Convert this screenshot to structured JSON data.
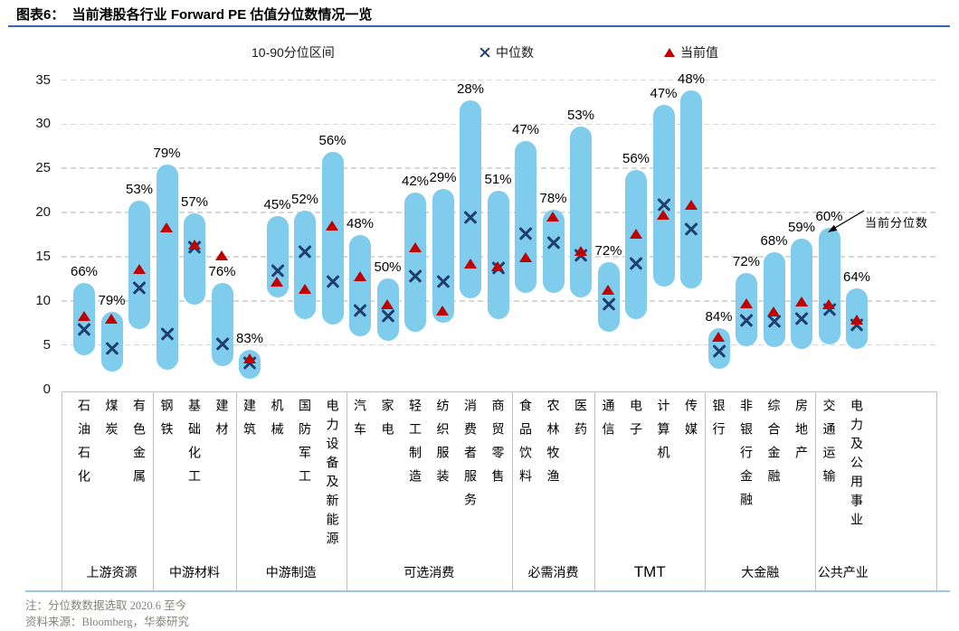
{
  "figure": {
    "title": "图表6：  当前港股各行业 Forward PE 估值分位数情况一览"
  },
  "legend": {
    "range_label": "10-90分位区间",
    "median_label": "中位数",
    "current_label": "当前值"
  },
  "annotation": {
    "text": "当前分位数"
  },
  "notes": {
    "note": "注：分位数数据选取 2020.6 至今",
    "source": "资料来源：Bloomberg，华泰研究"
  },
  "colors": {
    "bar": "#7fccec",
    "median_marker": "#1f3d6e",
    "current_marker": "#c00000",
    "title_rule": "#3a66a8",
    "bottom_rule": "#9dc3e6",
    "grid": "#d8d8d8",
    "table_border": "#c0c0c0",
    "note_text": "#83847c"
  },
  "chart_data": {
    "type": "bar",
    "subtype": "floating-range-bar-with-markers",
    "title": "当前港股各行业 Forward PE 估值分位数情况一览",
    "xlabel": "",
    "ylabel": "",
    "ylim": [
      0,
      35
    ],
    "yticks": [
      0,
      5,
      10,
      15,
      20,
      25,
      30,
      35
    ],
    "grid": true,
    "legend_position": "top",
    "series": [
      {
        "name": "10-90分位区间",
        "type": "range-bar"
      },
      {
        "name": "中位数",
        "type": "marker-x"
      },
      {
        "name": "当前值",
        "type": "marker-triangle"
      }
    ],
    "groups": [
      {
        "name": "上游资源",
        "industries": [
          "石油石化",
          "煤炭",
          "有色金属"
        ]
      },
      {
        "name": "中游材料",
        "industries": [
          "钢铁",
          "基础化工",
          "建材"
        ]
      },
      {
        "name": "中游制造",
        "industries": [
          "建筑",
          "机械",
          "国防军工",
          "电力设备及新能源"
        ]
      },
      {
        "name": "可选消费",
        "industries": [
          "汽车",
          "家电",
          "轻工制造",
          "纺织服装",
          "消费者服务",
          "商贸零售"
        ]
      },
      {
        "name": "必需消费",
        "industries": [
          "食品饮料",
          "农林牧渔",
          "医药"
        ]
      },
      {
        "name": "TMT",
        "industries": [
          "通信",
          "电子",
          "计算机",
          "传媒"
        ]
      },
      {
        "name": "大金融",
        "industries": [
          "银行",
          "非银行金融",
          "综合金融",
          "房地产"
        ]
      },
      {
        "name": "公共产业",
        "industries": [
          "交通运输",
          "电力及公用事业"
        ]
      }
    ],
    "bars": [
      {
        "industry": "石油石化",
        "group": "上游资源",
        "p10": 3.8,
        "p90": 12.0,
        "median": 6.8,
        "current": 8.3,
        "percentile": "66%"
      },
      {
        "industry": "煤炭",
        "group": "上游资源",
        "p10": 2.0,
        "p90": 8.8,
        "median": 4.6,
        "current": 8.0,
        "percentile": "79%"
      },
      {
        "industry": "有色金属",
        "group": "上游资源",
        "p10": 6.8,
        "p90": 21.3,
        "median": 11.5,
        "current": 13.6,
        "percentile": "53%"
      },
      {
        "industry": "钢铁",
        "group": "中游材料",
        "p10": 2.2,
        "p90": 25.4,
        "median": 6.3,
        "current": 18.3,
        "percentile": "79%"
      },
      {
        "industry": "基础化工",
        "group": "中游材料",
        "p10": 9.6,
        "p90": 19.9,
        "median": 16.1,
        "current": 16.4,
        "percentile": "57%"
      },
      {
        "industry": "建材",
        "group": "中游材料",
        "p10": 2.6,
        "p90": 12.0,
        "median": 5.1,
        "current": 15.1,
        "percentile": "76%"
      },
      {
        "industry": "建筑",
        "group": "中游制造",
        "p10": 1.2,
        "p90": 4.5,
        "median": 3.0,
        "current": 3.5,
        "percentile": "83%"
      },
      {
        "industry": "机械",
        "group": "中游制造",
        "p10": 10.4,
        "p90": 19.6,
        "median": 13.4,
        "current": 12.2,
        "percentile": "45%"
      },
      {
        "industry": "国防军工",
        "group": "中游制造",
        "p10": 7.9,
        "p90": 20.2,
        "median": 15.6,
        "current": 11.4,
        "percentile": "52%"
      },
      {
        "industry": "电力设备及新能源",
        "group": "中游制造",
        "p10": 7.3,
        "p90": 26.9,
        "median": 12.2,
        "current": 18.5,
        "percentile": "56%"
      },
      {
        "industry": "汽车",
        "group": "可选消费",
        "p10": 6.0,
        "p90": 17.4,
        "median": 8.9,
        "current": 12.8,
        "percentile": "48%"
      },
      {
        "industry": "家电",
        "group": "可选消费",
        "p10": 5.5,
        "p90": 12.5,
        "median": 8.3,
        "current": 9.6,
        "percentile": "50%"
      },
      {
        "industry": "轻工制造",
        "group": "可选消费",
        "p10": 6.5,
        "p90": 22.3,
        "median": 12.8,
        "current": 16.1,
        "percentile": "42%"
      },
      {
        "industry": "纺织服装",
        "group": "可选消费",
        "p10": 7.5,
        "p90": 22.7,
        "median": 12.2,
        "current": 8.9,
        "percentile": "29%"
      },
      {
        "industry": "消费者服务",
        "group": "可选消费",
        "p10": 10.3,
        "p90": 32.7,
        "median": 19.5,
        "current": 14.2,
        "percentile": "28%"
      },
      {
        "industry": "商贸零售",
        "group": "可选消费",
        "p10": 7.9,
        "p90": 22.5,
        "median": 13.7,
        "current": 13.9,
        "percentile": "51%"
      },
      {
        "industry": "食品饮料",
        "group": "必需消费",
        "p10": 10.9,
        "p90": 28.1,
        "median": 17.6,
        "current": 14.9,
        "percentile": "47%"
      },
      {
        "industry": "农林牧渔",
        "group": "必需消费",
        "p10": 10.9,
        "p90": 20.3,
        "median": 16.6,
        "current": 19.5,
        "percentile": "78%"
      },
      {
        "industry": "医药",
        "group": "必需消费",
        "p10": 10.4,
        "p90": 29.7,
        "median": 15.2,
        "current": 15.7,
        "percentile": "53%"
      },
      {
        "industry": "通信",
        "group": "TMT",
        "p10": 6.5,
        "p90": 14.4,
        "median": 9.6,
        "current": 11.3,
        "percentile": "72%"
      },
      {
        "industry": "电子",
        "group": "TMT",
        "p10": 7.9,
        "p90": 24.8,
        "median": 14.2,
        "current": 17.6,
        "percentile": "56%"
      },
      {
        "industry": "计算机",
        "group": "TMT",
        "p10": 11.6,
        "p90": 32.2,
        "median": 20.9,
        "current": 19.8,
        "percentile": "47%"
      },
      {
        "industry": "传媒",
        "group": "TMT",
        "p10": 11.4,
        "p90": 33.8,
        "median": 18.1,
        "current": 20.9,
        "percentile": "48%"
      },
      {
        "industry": "银行",
        "group": "大金融",
        "p10": 2.3,
        "p90": 6.9,
        "median": 4.3,
        "current": 5.9,
        "percentile": "84%"
      },
      {
        "industry": "非银行金融",
        "group": "大金融",
        "p10": 4.9,
        "p90": 13.1,
        "median": 7.8,
        "current": 9.7,
        "percentile": "72%"
      },
      {
        "industry": "综合金融",
        "group": "大金融",
        "p10": 4.8,
        "p90": 15.5,
        "median": 7.7,
        "current": 8.8,
        "percentile": "68%"
      },
      {
        "industry": "房地产",
        "group": "大金融",
        "p10": 4.6,
        "p90": 17.0,
        "median": 8.0,
        "current": 9.9,
        "percentile": "59%"
      },
      {
        "industry": "交通运输",
        "group": "公共产业",
        "p10": 5.1,
        "p90": 18.3,
        "median": 9.0,
        "current": 9.6,
        "percentile": "60%"
      },
      {
        "industry": "电力及公用事业",
        "group": "公共产业",
        "p10": 4.6,
        "p90": 11.4,
        "median": 7.3,
        "current": 7.9,
        "percentile": "64%"
      }
    ]
  }
}
